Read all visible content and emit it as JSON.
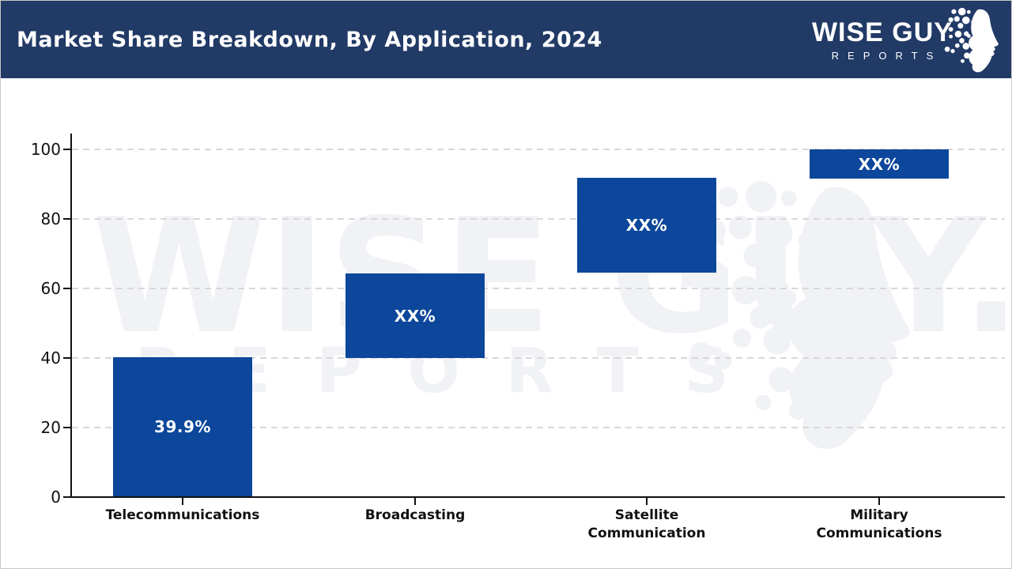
{
  "header": {
    "title": "Market Share Breakdown, By Application, 2024",
    "bg_color": "#213A66",
    "logo": {
      "wordmark": "WISE GUY",
      "subtext": "REPORTS"
    }
  },
  "watermark": {
    "wordmark": "WISE GUY.",
    "subtext": "REPORTS"
  },
  "chart_data": {
    "type": "bar",
    "subtype": "floating-segment-waterfall",
    "title": "Market Share Breakdown, By Application, 2024",
    "categories": [
      "Telecommunications",
      "Broadcasting",
      "Satellite\nCommunication",
      "Military\nCommunications"
    ],
    "segments": [
      {
        "category": "Telecommunications",
        "start": 0,
        "end": 39.9,
        "label": "39.9%"
      },
      {
        "category": "Broadcasting",
        "start": 39.9,
        "end": 64.2,
        "label": "XX%"
      },
      {
        "category": "Satellite Communication",
        "start": 64.2,
        "end": 91.5,
        "label": "XX%"
      },
      {
        "category": "Military Communications",
        "start": 91.5,
        "end": 99.8,
        "label": "XX%"
      }
    ],
    "ylim": [
      0,
      100
    ],
    "yticks": [
      0,
      20,
      40,
      60,
      80,
      100
    ],
    "xlabel": "",
    "ylabel": "",
    "grid": "horizontal-dashed",
    "legend": "none",
    "bar_color": "#0C479B",
    "bar_label_color": "#FFFFFF",
    "axis_color": "#111111",
    "grid_color": "#D8D8D8"
  }
}
